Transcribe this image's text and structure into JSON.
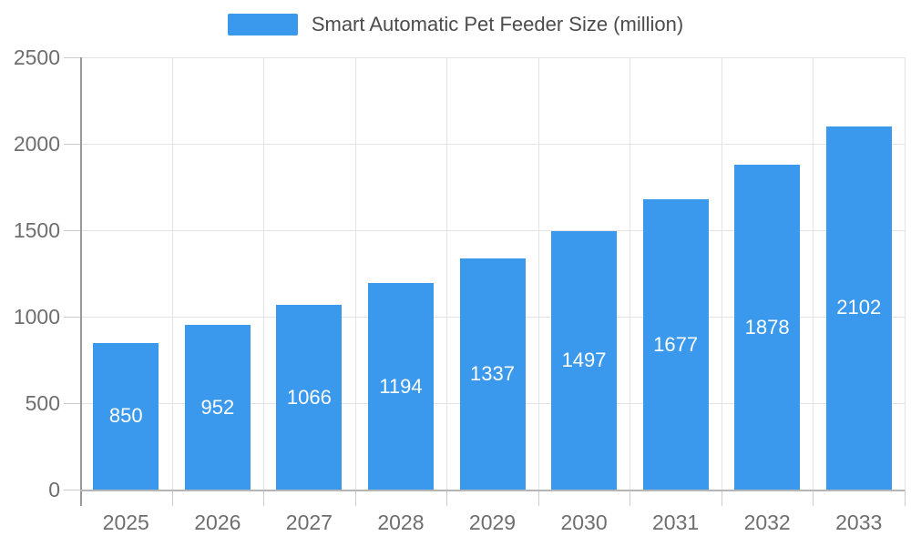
{
  "chart_data": {
    "type": "bar",
    "title": "Smart Automatic Pet Feeder Size (million)",
    "categories": [
      "2025",
      "2026",
      "2027",
      "2028",
      "2029",
      "2030",
      "2031",
      "2032",
      "2033"
    ],
    "values": [
      850,
      952,
      1066,
      1194,
      1337,
      1497,
      1677,
      1878,
      2102
    ],
    "xlabel": "",
    "ylabel": "",
    "ylim": [
      0,
      2500
    ],
    "yticks": [
      0,
      500,
      1000,
      1500,
      2000,
      2500
    ],
    "grid": true,
    "legend_position": "top",
    "bar_color": "#3A99EC",
    "value_label_color": "#ffffff",
    "axis_text_color": "#6e6e6e"
  }
}
